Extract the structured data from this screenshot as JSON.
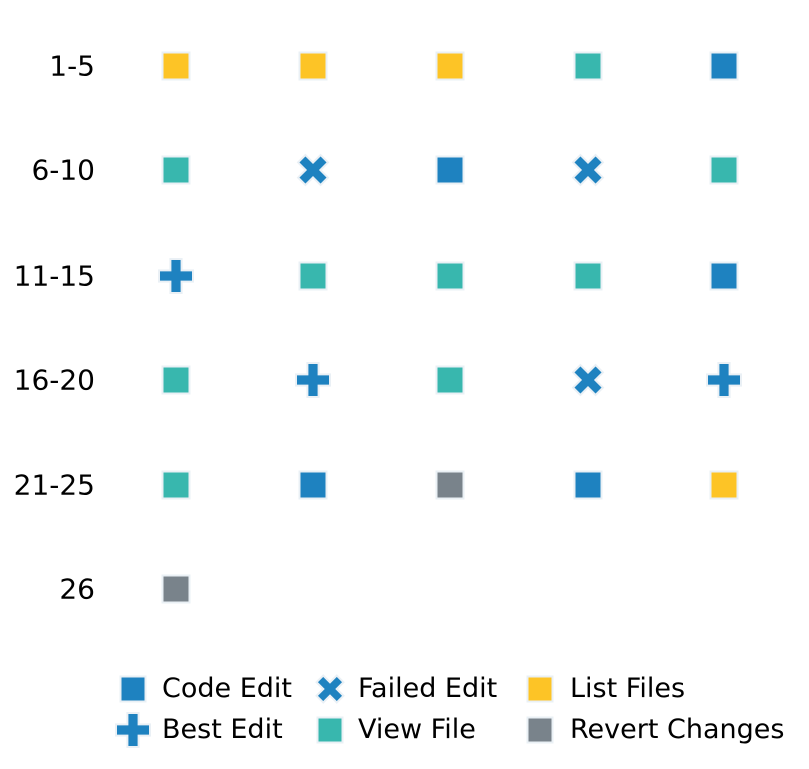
{
  "colors": {
    "blue": "#1e82c0",
    "teal": "#38b7ae",
    "yellow": "#fdc426",
    "gray": "#79838b",
    "marker_halo": "#eaf0f5",
    "text": "#000000",
    "background": "#ffffff"
  },
  "chart_data": {
    "type": "scatter",
    "title": "",
    "xlabel": "",
    "ylabel": "",
    "grid": false,
    "description": "Categorical marker grid showing a sequence of 26 agent actions, 5 per row, read left to right",
    "row_labels": [
      "1-5",
      "6-10",
      "11-15",
      "16-20",
      "21-25",
      "26"
    ],
    "columns_per_row": 5,
    "actions": [
      "List Files",
      "List Files",
      "List Files",
      "View File",
      "Code Edit",
      "View File",
      "Failed Edit",
      "Code Edit",
      "Failed Edit",
      "View File",
      "Best Edit",
      "View File",
      "View File",
      "View File",
      "Code Edit",
      "View File",
      "Best Edit",
      "View File",
      "Failed Edit",
      "Best Edit",
      "View File",
      "Code Edit",
      "Revert Changes",
      "Code Edit",
      "List Files",
      "Revert Changes"
    ],
    "marker_map": {
      "Code Edit": {
        "marker": "square",
        "color": "#1e82c0"
      },
      "Failed Edit": {
        "marker": "x",
        "color": "#1e82c0"
      },
      "List Files": {
        "marker": "square",
        "color": "#fdc426"
      },
      "Best Edit": {
        "marker": "plus",
        "color": "#1e82c0"
      },
      "View File": {
        "marker": "square",
        "color": "#38b7ae"
      },
      "Revert Changes": {
        "marker": "square",
        "color": "#79838b"
      }
    },
    "legend": {
      "position": "bottom",
      "rows": 2,
      "columns": 3,
      "entries": [
        {
          "label": "Code Edit",
          "marker": "square",
          "color": "#1e82c0"
        },
        {
          "label": "Failed Edit",
          "marker": "x",
          "color": "#1e82c0"
        },
        {
          "label": "List Files",
          "marker": "square",
          "color": "#fdc426"
        },
        {
          "label": "Best Edit",
          "marker": "plus",
          "color": "#1e82c0"
        },
        {
          "label": "View File",
          "marker": "square",
          "color": "#38b7ae"
        },
        {
          "label": "Revert Changes",
          "marker": "square",
          "color": "#79838b"
        }
      ]
    }
  }
}
